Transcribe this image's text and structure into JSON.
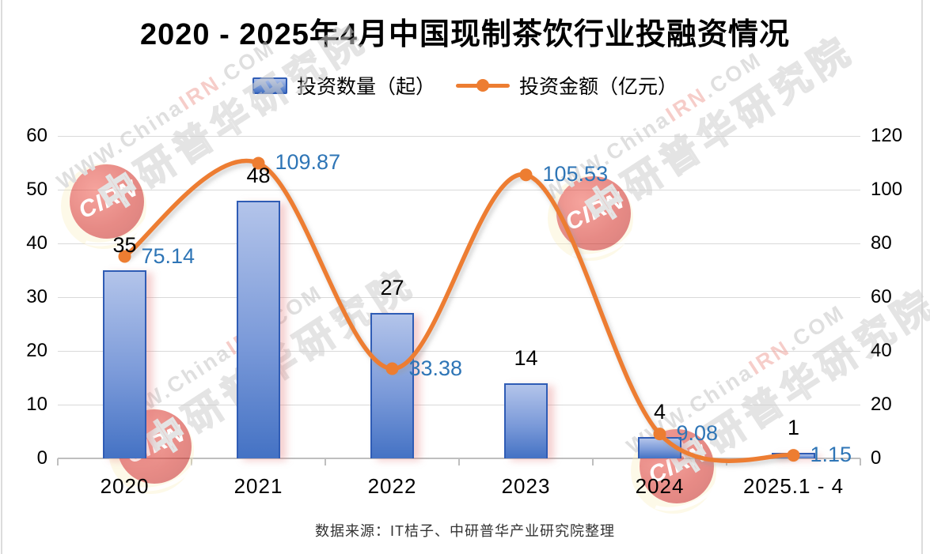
{
  "title": "2020 - 2025年4月中国现制茶饮行业投融资情况",
  "legend": {
    "bar_label": "投资数量（起）",
    "line_label": "投资金额（亿元）"
  },
  "chart_data": {
    "type": "combo",
    "categories": [
      "2020",
      "2021",
      "2022",
      "2023",
      "2024",
      "2025.1 - 4"
    ],
    "series": [
      {
        "name": "投资数量（起）",
        "type": "bar",
        "axis": "left",
        "values": [
          35,
          48,
          27,
          14,
          4,
          1
        ],
        "labels": [
          "35",
          "48",
          "27",
          "14",
          "4",
          "1"
        ]
      },
      {
        "name": "投资金额（亿元）",
        "type": "line",
        "axis": "right",
        "values": [
          75.14,
          109.87,
          33.38,
          105.53,
          9.08,
          1.15
        ],
        "labels": [
          "75.14",
          "109.87",
          "33.38",
          "105.53",
          "9.08",
          "1.15"
        ]
      }
    ],
    "left_axis": {
      "ticks": [
        0,
        10,
        20,
        30,
        40,
        50,
        60
      ],
      "range": [
        0,
        60
      ]
    },
    "right_axis": {
      "ticks": [
        0,
        20,
        40,
        60,
        80,
        100,
        120
      ],
      "range": [
        0,
        120
      ]
    },
    "grid": true,
    "legend_position": "top",
    "line_smooth": true
  },
  "source_note": "数据来源：IT桔子、中研普华产业研究院整理",
  "watermark": {
    "logo_text": "CIRN",
    "url_prefix": "WWW.China",
    "url_mid": "IRN",
    "url_suffix": ".COM",
    "cn_text": "中研普华研究院"
  },
  "colors": {
    "bar_fill_top": "#b3c4ea",
    "bar_fill_bottom": "#4472c4",
    "bar_border": "#2f5cb5",
    "line": "#ed7d31",
    "line_value_label": "#2e75b6",
    "bar_value_label": "#000000",
    "gridline": "#d9d9d9",
    "axis": "#bfbfbf"
  }
}
